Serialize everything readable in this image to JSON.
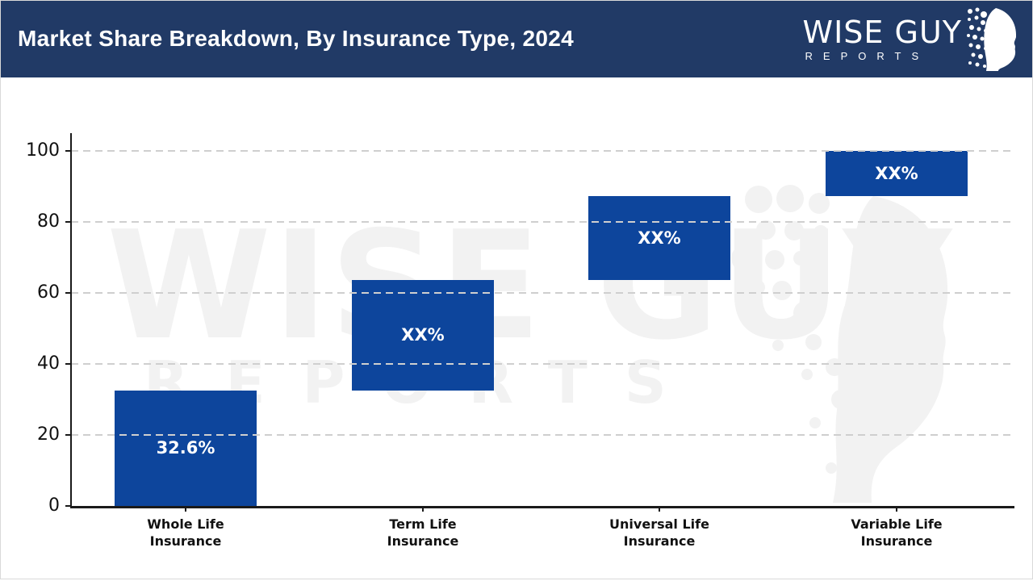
{
  "page": {
    "background_color": "#ffffff",
    "frame_color": "#d9d9d9"
  },
  "header": {
    "title": "Market Share Breakdown, By Insurance Type, 2024",
    "background_color": "#213a66",
    "text_color": "#ffffff",
    "logo": {
      "line1": "WISE GUY",
      "line2": "REPORTS"
    }
  },
  "watermark": {
    "line1": "WISE GUY",
    "line2": "REPORTS",
    "color": "#f2f2f2"
  },
  "chart_data": {
    "type": "bar",
    "subtype": "floating-waterfall",
    "title": "Market Share Breakdown, By Insurance Type, 2024",
    "xlabel": "",
    "ylabel": "",
    "ylim": [
      0,
      105
    ],
    "yticks": [
      0,
      20,
      40,
      60,
      80,
      100
    ],
    "grid": "horizontal-dashed",
    "legend": "none",
    "bar_color": "#0d459c",
    "value_label_color": "#ffffff",
    "categories": [
      "Whole Life Insurance",
      "Term Life Insurance",
      "Universal Life Insurance",
      "Variable Life Insurance"
    ],
    "segments": [
      {
        "category_lines": [
          "Whole Life",
          "Insurance"
        ],
        "start": 0,
        "end": 32.6,
        "label": "32.6%"
      },
      {
        "category_lines": [
          "Term Life",
          "Insurance"
        ],
        "start": 32.6,
        "end": 63.6,
        "label": "XX%"
      },
      {
        "category_lines": [
          "Universal Life",
          "Insurance"
        ],
        "start": 63.6,
        "end": 87.3,
        "label": "XX%"
      },
      {
        "category_lines": [
          "Variable Life",
          "Insurance"
        ],
        "start": 87.3,
        "end": 100,
        "label": "XX%"
      }
    ]
  }
}
